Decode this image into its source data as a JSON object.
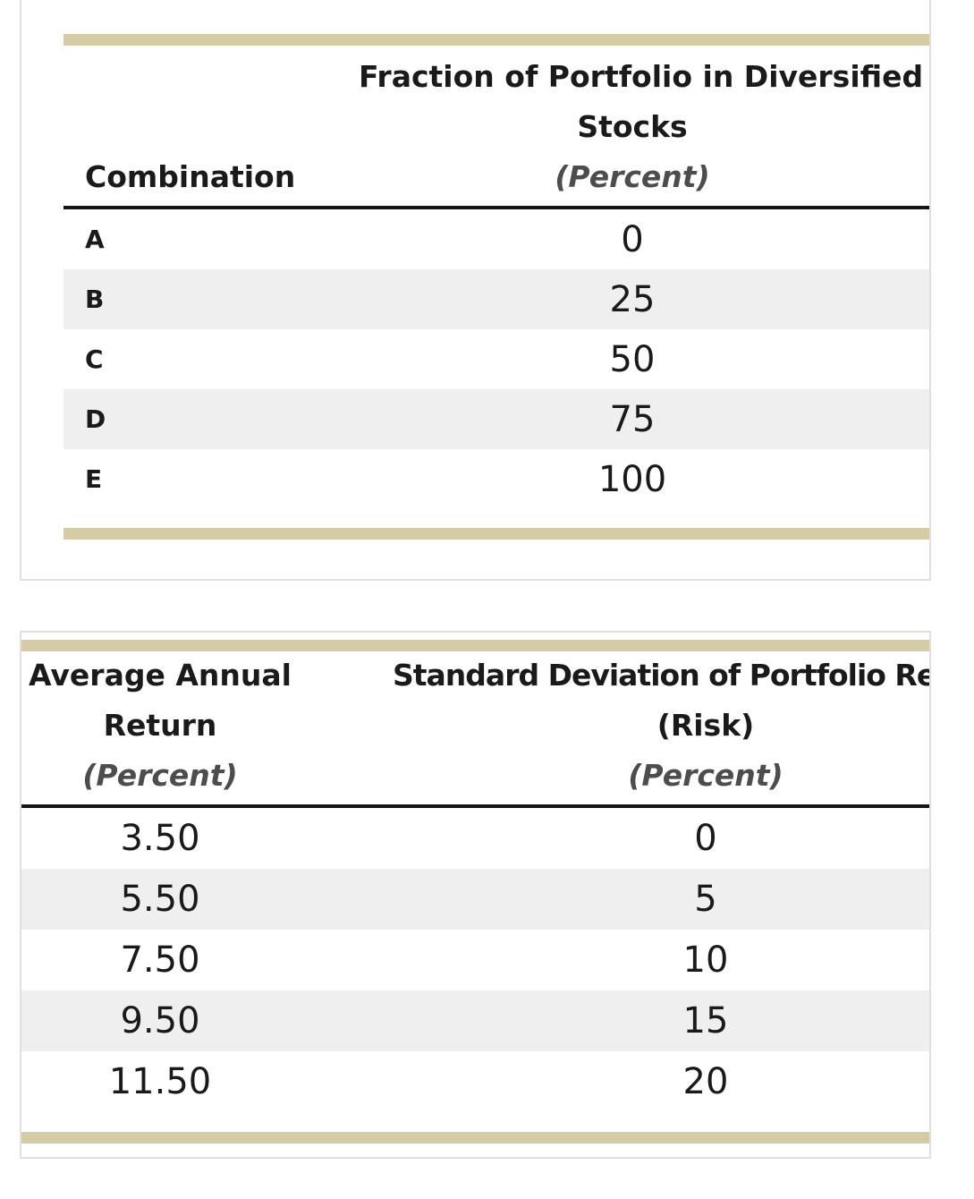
{
  "theme": {
    "accent_bar_color": "#d5cba4",
    "stripe_color": "#efefef",
    "rule_color": "#161616",
    "unit_text_color": "#4d4d4d",
    "card_border_color": "#e0e0e0"
  },
  "table1": {
    "header": {
      "col1": "Combination",
      "col2_line1": "Fraction of Portfolio in Diversified",
      "col2_line2": "Stocks",
      "col2_unit": "(Percent)"
    },
    "rows": [
      {
        "label": "A",
        "value": "0"
      },
      {
        "label": "B",
        "value": "25"
      },
      {
        "label": "C",
        "value": "50"
      },
      {
        "label": "D",
        "value": "75"
      },
      {
        "label": "E",
        "value": "100"
      }
    ]
  },
  "table2": {
    "header": {
      "col1_line1": "Average Annual",
      "col1_line2": "Return",
      "col1_unit": "(Percent)",
      "col2_line1": "Standard Deviation of Portfolio Re",
      "col2_line2": "(Risk)",
      "col2_unit": "(Percent)"
    },
    "rows": [
      {
        "return": "3.50",
        "risk": "0"
      },
      {
        "return": "5.50",
        "risk": "5"
      },
      {
        "return": "7.50",
        "risk": "10"
      },
      {
        "return": "9.50",
        "risk": "15"
      },
      {
        "return": "11.50",
        "risk": "20"
      }
    ]
  }
}
